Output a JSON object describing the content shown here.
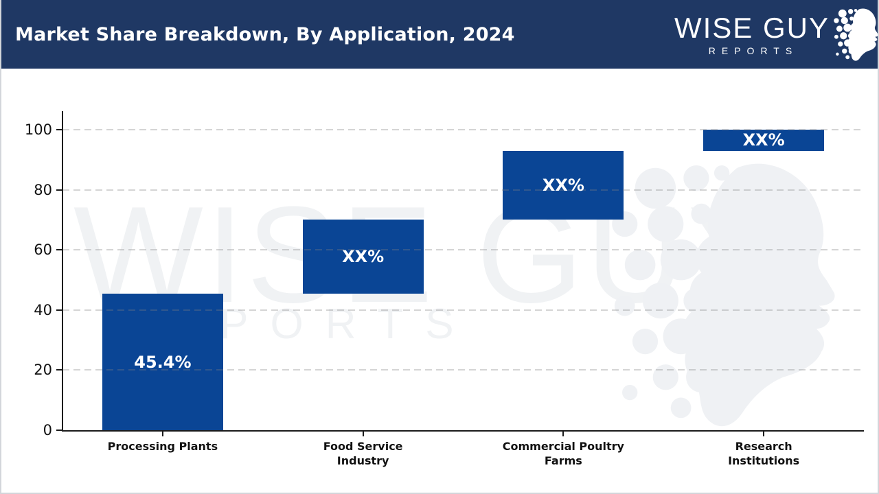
{
  "header": {
    "title": "Market Share Breakdown, By Application, 2024",
    "logo": {
      "wordmark": "WISE GUY",
      "subtitle": "REPORTS"
    }
  },
  "watermark": {
    "wordmark": "WISE GUY",
    "subtitle": "REPORTS"
  },
  "chart_data": {
    "type": "bar",
    "subtype": "waterfall",
    "title": "Market Share Breakdown, By Application, 2024",
    "categories": [
      "Processing Plants",
      "Food Service\nIndustry",
      "Commercial Poultry\nFarms",
      "Research\nInstitutions"
    ],
    "segments": [
      {
        "category": "Processing Plants",
        "start": 0,
        "end": 45.4,
        "label": "45.4%"
      },
      {
        "category": "Food Service Industry",
        "start": 45.4,
        "end": 70,
        "label": "XX%"
      },
      {
        "category": "Commercial Poultry Farms",
        "start": 70,
        "end": 93,
        "label": "XX%"
      },
      {
        "category": "Research Institutions",
        "start": 93,
        "end": 100,
        "label": "XX%"
      }
    ],
    "yticks": [
      0,
      20,
      40,
      60,
      80,
      100
    ],
    "ylim": [
      0,
      106
    ],
    "xlabel": "",
    "ylabel": "",
    "grid": true,
    "legend": false,
    "bar_color": "#0a4595",
    "bar_label_color": "#ffffff",
    "axis_color": "#1a1a1a",
    "grid_color": "#d5d5d5",
    "header_bg": "#1f3864",
    "watermark_color": "#f0f2f4"
  }
}
